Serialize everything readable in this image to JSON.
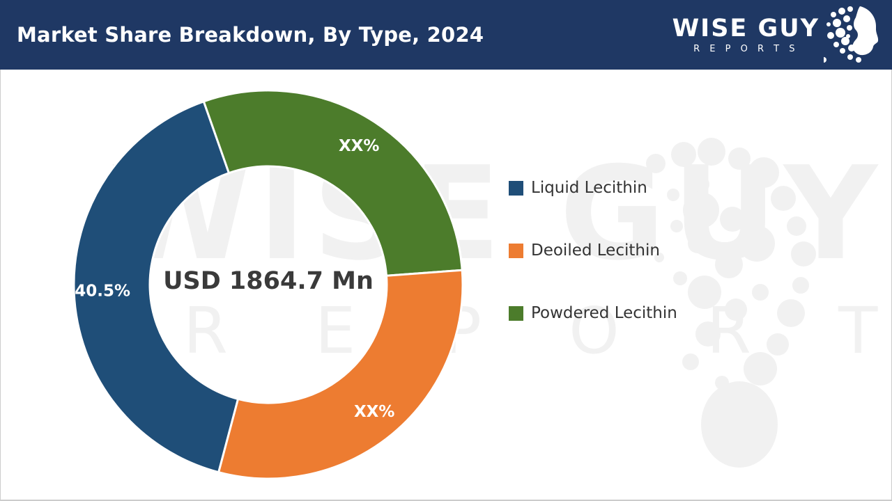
{
  "header": {
    "title": "Market Share Breakdown, By Type, 2024",
    "logo": {
      "line1": "WISE GUY",
      "line2": "R E P O R T S"
    }
  },
  "watermark": {
    "line1": "WISE GUY",
    "line2": "R E P O R T S"
  },
  "colors": {
    "header_bg": "#1f3864",
    "border": "#cccccc",
    "center_text": "#3a3a3a",
    "slice_label_text": "#ffffff",
    "watermark": "#f1f1f1"
  },
  "chart_data": {
    "type": "pie",
    "subtype": "donut",
    "title": "Market Share Breakdown, By Type, 2024",
    "center_label": "USD 1864.7 Mn",
    "legend_position": "right",
    "slices": [
      {
        "name": "Liquid Lecithin",
        "label": "40.5%",
        "value_pct": 40.5,
        "color": "#1f4e78"
      },
      {
        "name": "Deoiled Lecithin",
        "label": "XX%",
        "value_pct": 30.3,
        "color": "#ed7c31"
      },
      {
        "name": "Powdered Lecithin",
        "label": "XX%",
        "value_pct": 29.2,
        "color": "#4c7c2b"
      }
    ],
    "draw_order": [
      0,
      2,
      1
    ],
    "start_angle_deg": 194.8
  }
}
